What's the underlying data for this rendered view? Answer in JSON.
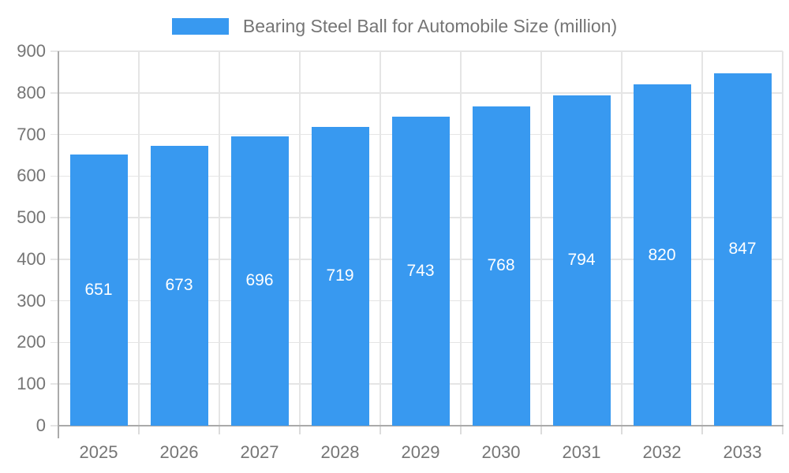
{
  "chart_data": {
    "type": "bar",
    "title": "Bearing Steel Ball for Automobile Size (million)",
    "categories": [
      "2025",
      "2026",
      "2027",
      "2028",
      "2029",
      "2030",
      "2031",
      "2032",
      "2033"
    ],
    "values": [
      651,
      673,
      696,
      719,
      743,
      768,
      794,
      820,
      847
    ],
    "xlabel": "",
    "ylabel": "",
    "ylim": [
      0,
      900
    ],
    "yticks": [
      0,
      100,
      200,
      300,
      400,
      500,
      600,
      700,
      800,
      900
    ],
    "grid": true,
    "legend_position": "top",
    "bar_color": "#3899F0",
    "value_label_color": "#FFFFFF",
    "axis_text_color": "#757575",
    "title_text_color": "#757575",
    "grid_color": "#E5E5E5",
    "axis_line_color": "#AAAAAA"
  }
}
